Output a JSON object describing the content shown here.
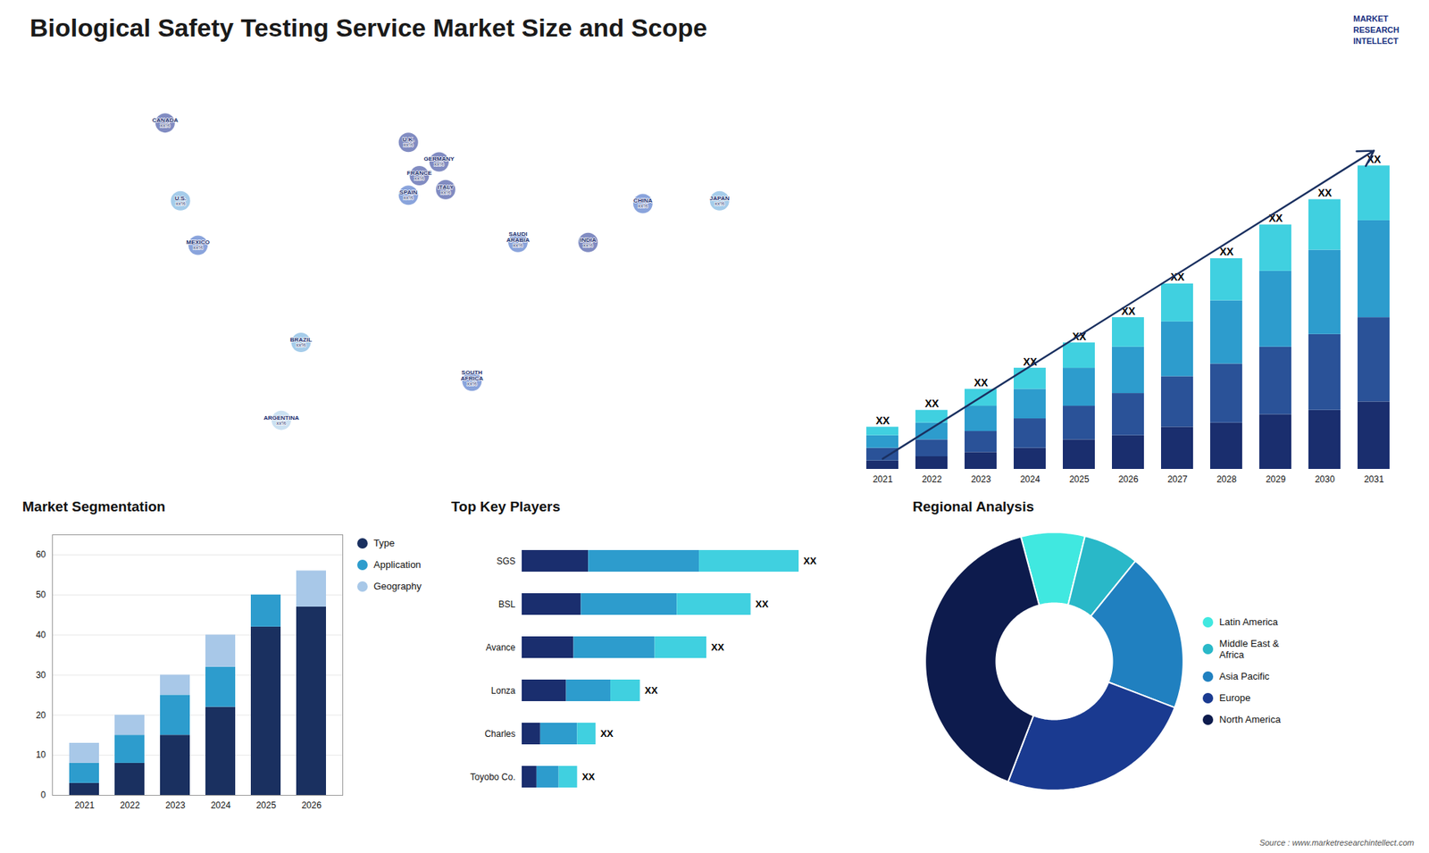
{
  "chart_data": [
    {
      "type": "map",
      "title": "Biological Safety Testing Service Market Size and Scope",
      "categories": [
        "CANADA",
        "U.S.",
        "MEXICO",
        "BRAZIL",
        "ARGENTINA",
        "U.K.",
        "FRANCE",
        "SPAIN",
        "GERMANY",
        "ITALY",
        "SAUDI\nARABIA",
        "SOUTH\nAFRICA",
        "CHINA",
        "INDIA",
        "JAPAN"
      ],
      "x": [
        -115,
        -108,
        -100,
        -53,
        -62,
        -4,
        1,
        -4,
        10,
        13,
        46,
        25,
        103,
        78,
        138
      ],
      "y": [
        65,
        37,
        21,
        -14,
        -42,
        58,
        46,
        39,
        51,
        41,
        22,
        -28,
        36,
        22,
        37
      ],
      "colors": [
        "#1a2e90",
        "#5ba3d9",
        "#2a5abf",
        "#5ba3d9",
        "#a0c8e8",
        "#1a2e90",
        "#1a2e90",
        "#2a5abf",
        "#1a2e90",
        "#1a2e90",
        "#2a5abf",
        "#2a5abf",
        "#2a5abf",
        "#1a2e90",
        "#5ba3d9"
      ],
      "value_labels": [
        "xx%",
        "xx%",
        "xx%",
        "xx%",
        "xx%",
        "xx%",
        "xx%",
        "xx%",
        "xx%",
        "xx%",
        "xx%",
        "xx%",
        "xx%",
        "xx%",
        "xx%"
      ],
      "xlim": [
        -180,
        180
      ],
      "ylim": [
        -65,
        85
      ],
      "tick_labels": false,
      "annotations": [
        "MARKET",
        "RESEARCH",
        "INTELLECT"
      ]
    },
    {
      "type": "bar",
      "stacked": true,
      "categories": [
        "2021",
        "2022",
        "2023",
        "2024",
        "2025",
        "2026",
        "2027",
        "2028",
        "2029",
        "2030",
        "2031"
      ],
      "series": [
        {
          "color": "#1a2e6e",
          "values": [
            2,
            3,
            4,
            5,
            7,
            8,
            10,
            11,
            13,
            14,
            16
          ]
        },
        {
          "color": "#2a5298",
          "values": [
            3,
            4,
            5,
            7,
            8,
            10,
            12,
            14,
            16,
            18,
            20
          ]
        },
        {
          "color": "#2d9ccd",
          "values": [
            3,
            4,
            6,
            7,
            9,
            11,
            13,
            15,
            18,
            20,
            23
          ]
        },
        {
          "color": "#40d0e0",
          "values": [
            2,
            3,
            4,
            5,
            6,
            7,
            9,
            10,
            11,
            12,
            13
          ]
        }
      ],
      "value_labels": [
        "XX",
        "XX",
        "XX",
        "XX",
        "XX",
        "XX",
        "XX",
        "XX",
        "XX",
        "XX",
        "XX"
      ],
      "ylim": [
        0,
        93.6
      ],
      "tick_labels": "x",
      "grid": false,
      "annotations": [
        {
          "type": "arrow",
          "x": [
            "2021",
            "2031"
          ],
          "y": [
            2.5,
            75.6
          ],
          "color": "#1a3060"
        }
      ]
    },
    {
      "type": "bar",
      "title": "Market Segmentation",
      "stacked": true,
      "categories": [
        "2021",
        "2022",
        "2023",
        "2024",
        "2025",
        "2026"
      ],
      "series": [
        {
          "name": "Type",
          "color": "#1a3060",
          "values": [
            3,
            8,
            15,
            22,
            42,
            47
          ]
        },
        {
          "name": "Application",
          "color": "#2d9ccd",
          "values": [
            5,
            7,
            10,
            10,
            8,
            0
          ]
        },
        {
          "name": "Geography",
          "color": "#a8c8e8",
          "values": [
            5,
            5,
            5,
            8,
            0,
            9
          ]
        }
      ],
      "ylim": [
        0,
        65
      ],
      "yticks": [
        0,
        10,
        20,
        30,
        40,
        50,
        60
      ],
      "grid": true,
      "legend": "right"
    },
    {
      "type": "bar",
      "title": "Top Key Players",
      "orientation": "horizontal",
      "stacked": true,
      "categories": [
        "SGS",
        "BSL",
        "Avance",
        "Lonza",
        "Charles",
        "Toyobo Co."
      ],
      "series": [
        {
          "color": "#1a2e6e",
          "values": [
            18,
            16,
            14,
            12,
            5,
            4
          ]
        },
        {
          "color": "#2d9ccd",
          "values": [
            30,
            26,
            22,
            12,
            10,
            6
          ]
        },
        {
          "color": "#40d0e0",
          "values": [
            27,
            20,
            14,
            8,
            5,
            5
          ]
        }
      ],
      "value_labels": [
        "XX",
        "XX",
        "XX",
        "XX",
        "XX",
        "XX"
      ],
      "xlim": [
        0,
        93.75
      ],
      "tick_labels": "y",
      "grid": false
    },
    {
      "type": "pie",
      "title": "Regional Analysis",
      "categories": [
        "Latin America",
        "Middle East &\nAfrica",
        "Asia Pacific",
        "Europe",
        "North America"
      ],
      "values": [
        8,
        7,
        20,
        25,
        40
      ],
      "colors": [
        "#40e8e0",
        "#29b8c8",
        "#2080c0",
        "#1a3a90",
        "#0d1b4d"
      ],
      "legend": "right",
      "annotations": [
        "Source : www.marketresearchintellect.com"
      ]
    }
  ]
}
